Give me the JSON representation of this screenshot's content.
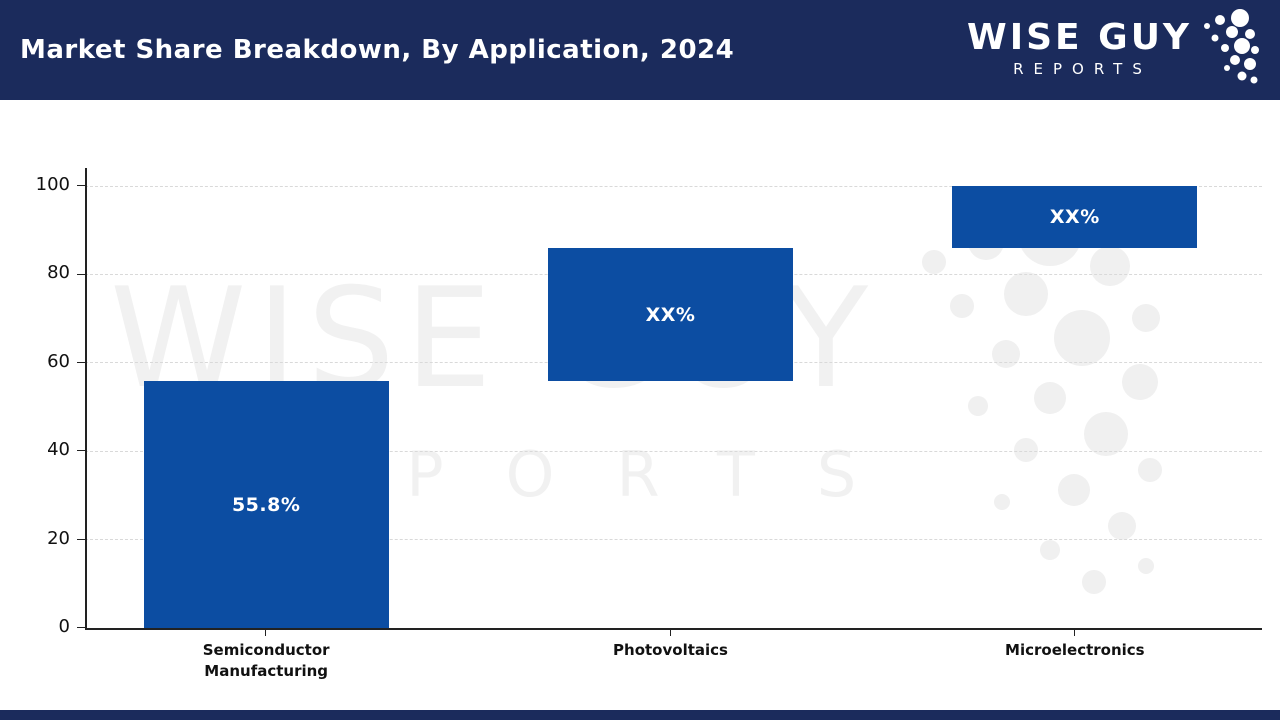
{
  "header": {
    "title": "Market Share Breakdown, By Application, 2024",
    "logo_line1": "WISE GUY",
    "logo_line2": "REPORTS",
    "bg_color": "#1b2b5c"
  },
  "watermark": {
    "line1": "WISE GUY",
    "line2": "REPORTS"
  },
  "chart_data": {
    "type": "bar",
    "subtype": "floating-waterfall",
    "title": "Market Share Breakdown, By Application, 2024",
    "categories": [
      "Semiconductor Manufacturing",
      "Photovoltaics",
      "Microelectronics"
    ],
    "bars": [
      {
        "category": "Semiconductor Manufacturing",
        "start": 0,
        "end": 55.8,
        "label": "55.8%"
      },
      {
        "category": "Photovoltaics",
        "start": 55.8,
        "end": 86,
        "label": "XX%"
      },
      {
        "category": "Microelectronics",
        "start": 86,
        "end": 100,
        "label": "XX%"
      }
    ],
    "xlabel": "",
    "ylabel": "",
    "ylim": [
      0,
      100
    ],
    "yticks": [
      0,
      20,
      40,
      60,
      80,
      100
    ],
    "grid": "horizontal-dashed",
    "legend": "none",
    "bar_color": "#0c4da2",
    "bar_label_color": "#ffffff"
  }
}
